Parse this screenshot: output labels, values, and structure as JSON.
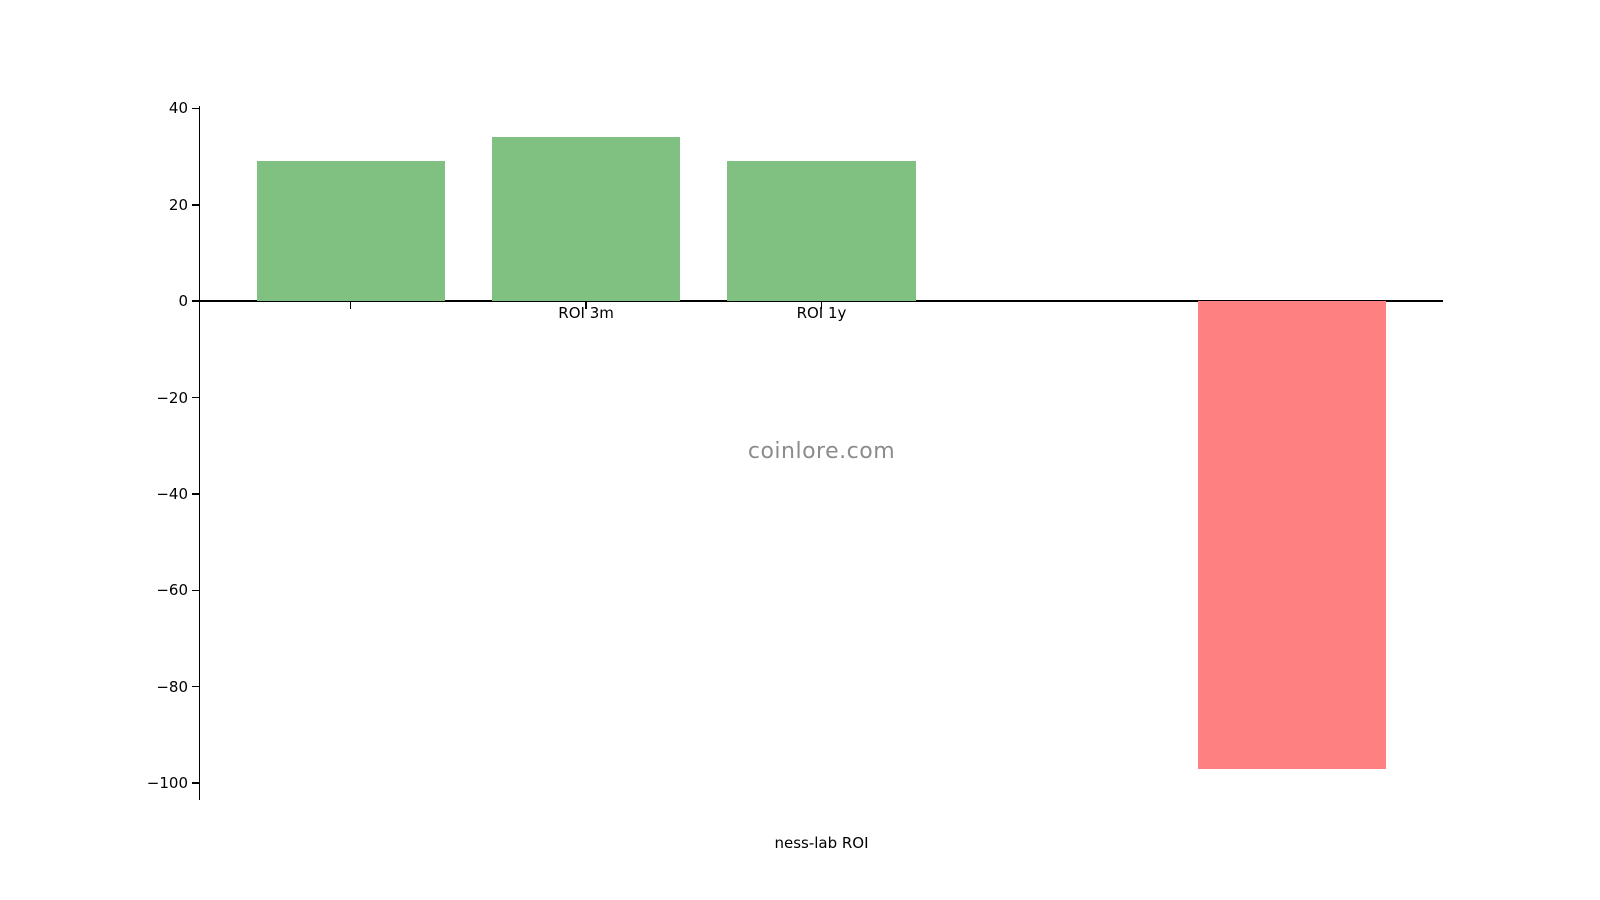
{
  "chart_data": {
    "type": "bar",
    "title": "",
    "xlabel": "ness-lab ROI",
    "ylabel": "",
    "watermark": "coinlore.com",
    "categories": [
      "",
      "ROI 3m",
      "ROI 1y",
      "",
      ""
    ],
    "values": [
      29,
      34,
      29,
      0,
      -97
    ],
    "bar_colors": [
      "#80c080",
      "#80c080",
      "#80c080",
      "#80c080",
      "#ff8080"
    ],
    "positive_color": "#80c080",
    "negative_color": "#ff8080",
    "yticks": [
      40,
      20,
      0,
      -20,
      -40,
      -60,
      -80,
      -100
    ],
    "xticks": [
      {
        "index": 0,
        "label": ""
      },
      {
        "index": 1,
        "label": "ROI 3m"
      },
      {
        "index": 2,
        "label": "ROI 1y"
      }
    ],
    "ylim": [
      -103.5,
      40.5
    ],
    "xlim": [
      -0.64,
      4.64
    ],
    "bar_width_units": 0.8,
    "grid": false,
    "legend": false,
    "axis_color": "#000000",
    "watermark_color": "#8c8c8c"
  }
}
